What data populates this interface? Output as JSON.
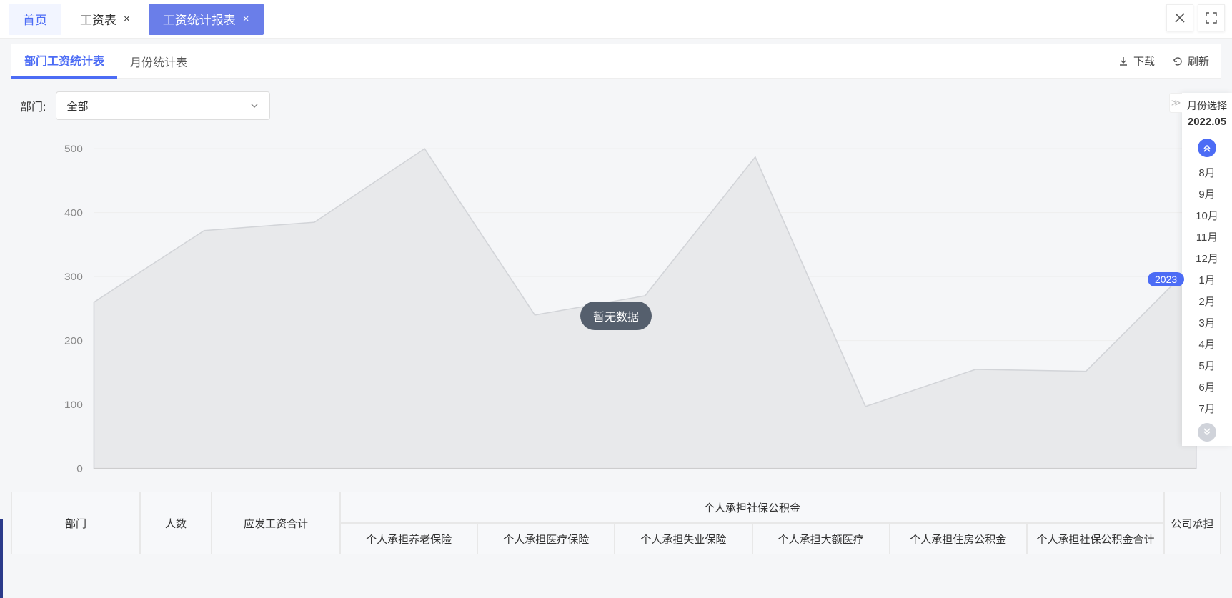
{
  "top_tabs": {
    "home": "首页",
    "tab1": "工资表",
    "tab2": "工资统计报表"
  },
  "sub_tabs": {
    "tab1": "部门工资统计表",
    "tab2": "月份统计表"
  },
  "actions": {
    "download": "下载",
    "refresh": "刷新"
  },
  "filter": {
    "label": "部门:",
    "value": "全部"
  },
  "chart": {
    "type": "area",
    "ylim": [
      0,
      500
    ],
    "yticks": [
      0,
      100,
      200,
      300,
      400,
      500
    ],
    "values": [
      260,
      372,
      385,
      500,
      240,
      270,
      487,
      97,
      155,
      152,
      324
    ],
    "fill_color": "#e8e9eb",
    "stroke_color": "#d2d4d8",
    "grid_color": "#eeeeee",
    "axis_color": "#cccccc",
    "tick_label_color": "#888888",
    "tick_font_size": 14,
    "background_color": "#ffffff",
    "tooltip_text": "暂无数据",
    "tooltip_bg": "#555f6d",
    "tooltip_text_color": "#ffffff"
  },
  "table": {
    "group_header": "个人承担社保公积金",
    "last_header_partial": "公司承担",
    "col_dept": "部门",
    "col_count": "人数",
    "col_total": "应发工资合计",
    "sub_cols": [
      "个人承担养老保险",
      "个人承担医疗保险",
      "个人承担失业保险",
      "个人承担大额医疗",
      "个人承担住房公积金",
      "个人承担社保公积金合计"
    ]
  },
  "month_panel": {
    "title": "月份选择",
    "current": "2022.05",
    "year_badge": "2023",
    "items": [
      "8月",
      "9月",
      "10月",
      "11月",
      "12月",
      "1月",
      "2月",
      "3月",
      "4月",
      "5月",
      "6月",
      "7月"
    ]
  }
}
